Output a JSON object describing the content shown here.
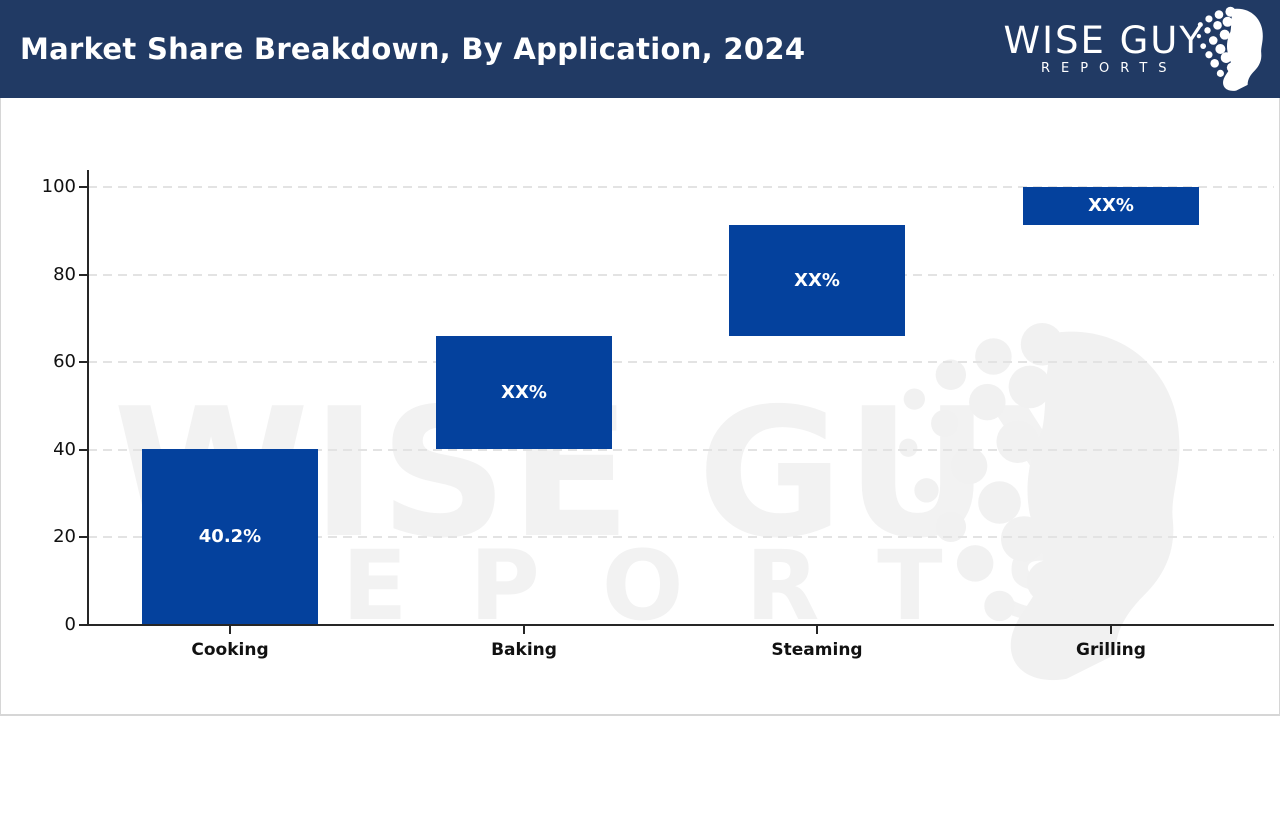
{
  "header": {
    "title": "Market Share Breakdown, By Application, 2024",
    "bg_color": "#213a64",
    "logo": {
      "line1": "WISE GUY",
      "line2": "REPORTS"
    }
  },
  "watermark": {
    "line1": "WISE GUY",
    "line2": "RTS",
    "line2_full": "REPORTS"
  },
  "chart_data": {
    "type": "bar",
    "subtype": "waterfall",
    "title": "Market Share Breakdown, By Application, 2024",
    "categories": [
      "Cooking",
      "Baking",
      "Steaming",
      "Grilling"
    ],
    "segments": [
      {
        "category": "Cooking",
        "start": 0,
        "end": 40.2,
        "label": "40.2%"
      },
      {
        "category": "Baking",
        "start": 40.2,
        "end": 66.0,
        "label": "XX%"
      },
      {
        "category": "Steaming",
        "start": 66.0,
        "end": 91.4,
        "label": "XX%"
      },
      {
        "category": "Grilling",
        "start": 91.4,
        "end": 100,
        "label": "XX%"
      }
    ],
    "xlabel": "",
    "ylabel": "",
    "ylim": [
      0,
      100
    ],
    "yticks": [
      0,
      20,
      40,
      60,
      80,
      100
    ],
    "grid": "horizontal-dashed",
    "legend": "none",
    "bar_color": "#04419d",
    "bar_label_color": "#ffffff",
    "axis_color": "#262626",
    "gridline_color": "#e3e3e3"
  }
}
